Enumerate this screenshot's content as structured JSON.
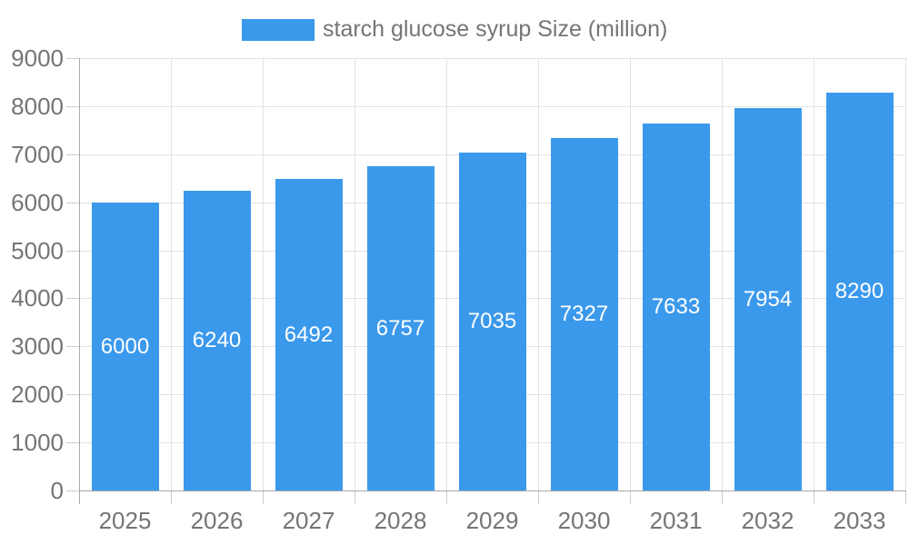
{
  "legend": {
    "label": "starch glucose syrup Size (million)"
  },
  "chart_data": {
    "type": "bar",
    "title": "",
    "categories": [
      "2025",
      "2026",
      "2027",
      "2028",
      "2029",
      "2030",
      "2031",
      "2032",
      "2033"
    ],
    "series": [
      {
        "name": "starch glucose syrup Size (million)",
        "values": [
          6000,
          6240,
          6492,
          6757,
          7035,
          7327,
          7633,
          7954,
          8290
        ]
      }
    ],
    "value_labels_shown": true,
    "xlabel": "",
    "ylabel": "",
    "ylim": [
      0,
      9000
    ],
    "ytick_step": 1000,
    "ytick_labels": [
      "0",
      "1000",
      "2000",
      "3000",
      "4000",
      "5000",
      "6000",
      "7000",
      "8000",
      "9000"
    ],
    "grid": {
      "horizontal": true,
      "vertical": true
    },
    "legend_position": "top-center"
  },
  "colors": {
    "bar": "#3b99ec",
    "value_label_text": "#ffffff",
    "axis_text": "#757575",
    "legend_text": "#757575",
    "axis_line": "#a8a8a8",
    "gridline": "#e2e2e2",
    "tick": "#cccccc",
    "background": "#ffffff"
  }
}
